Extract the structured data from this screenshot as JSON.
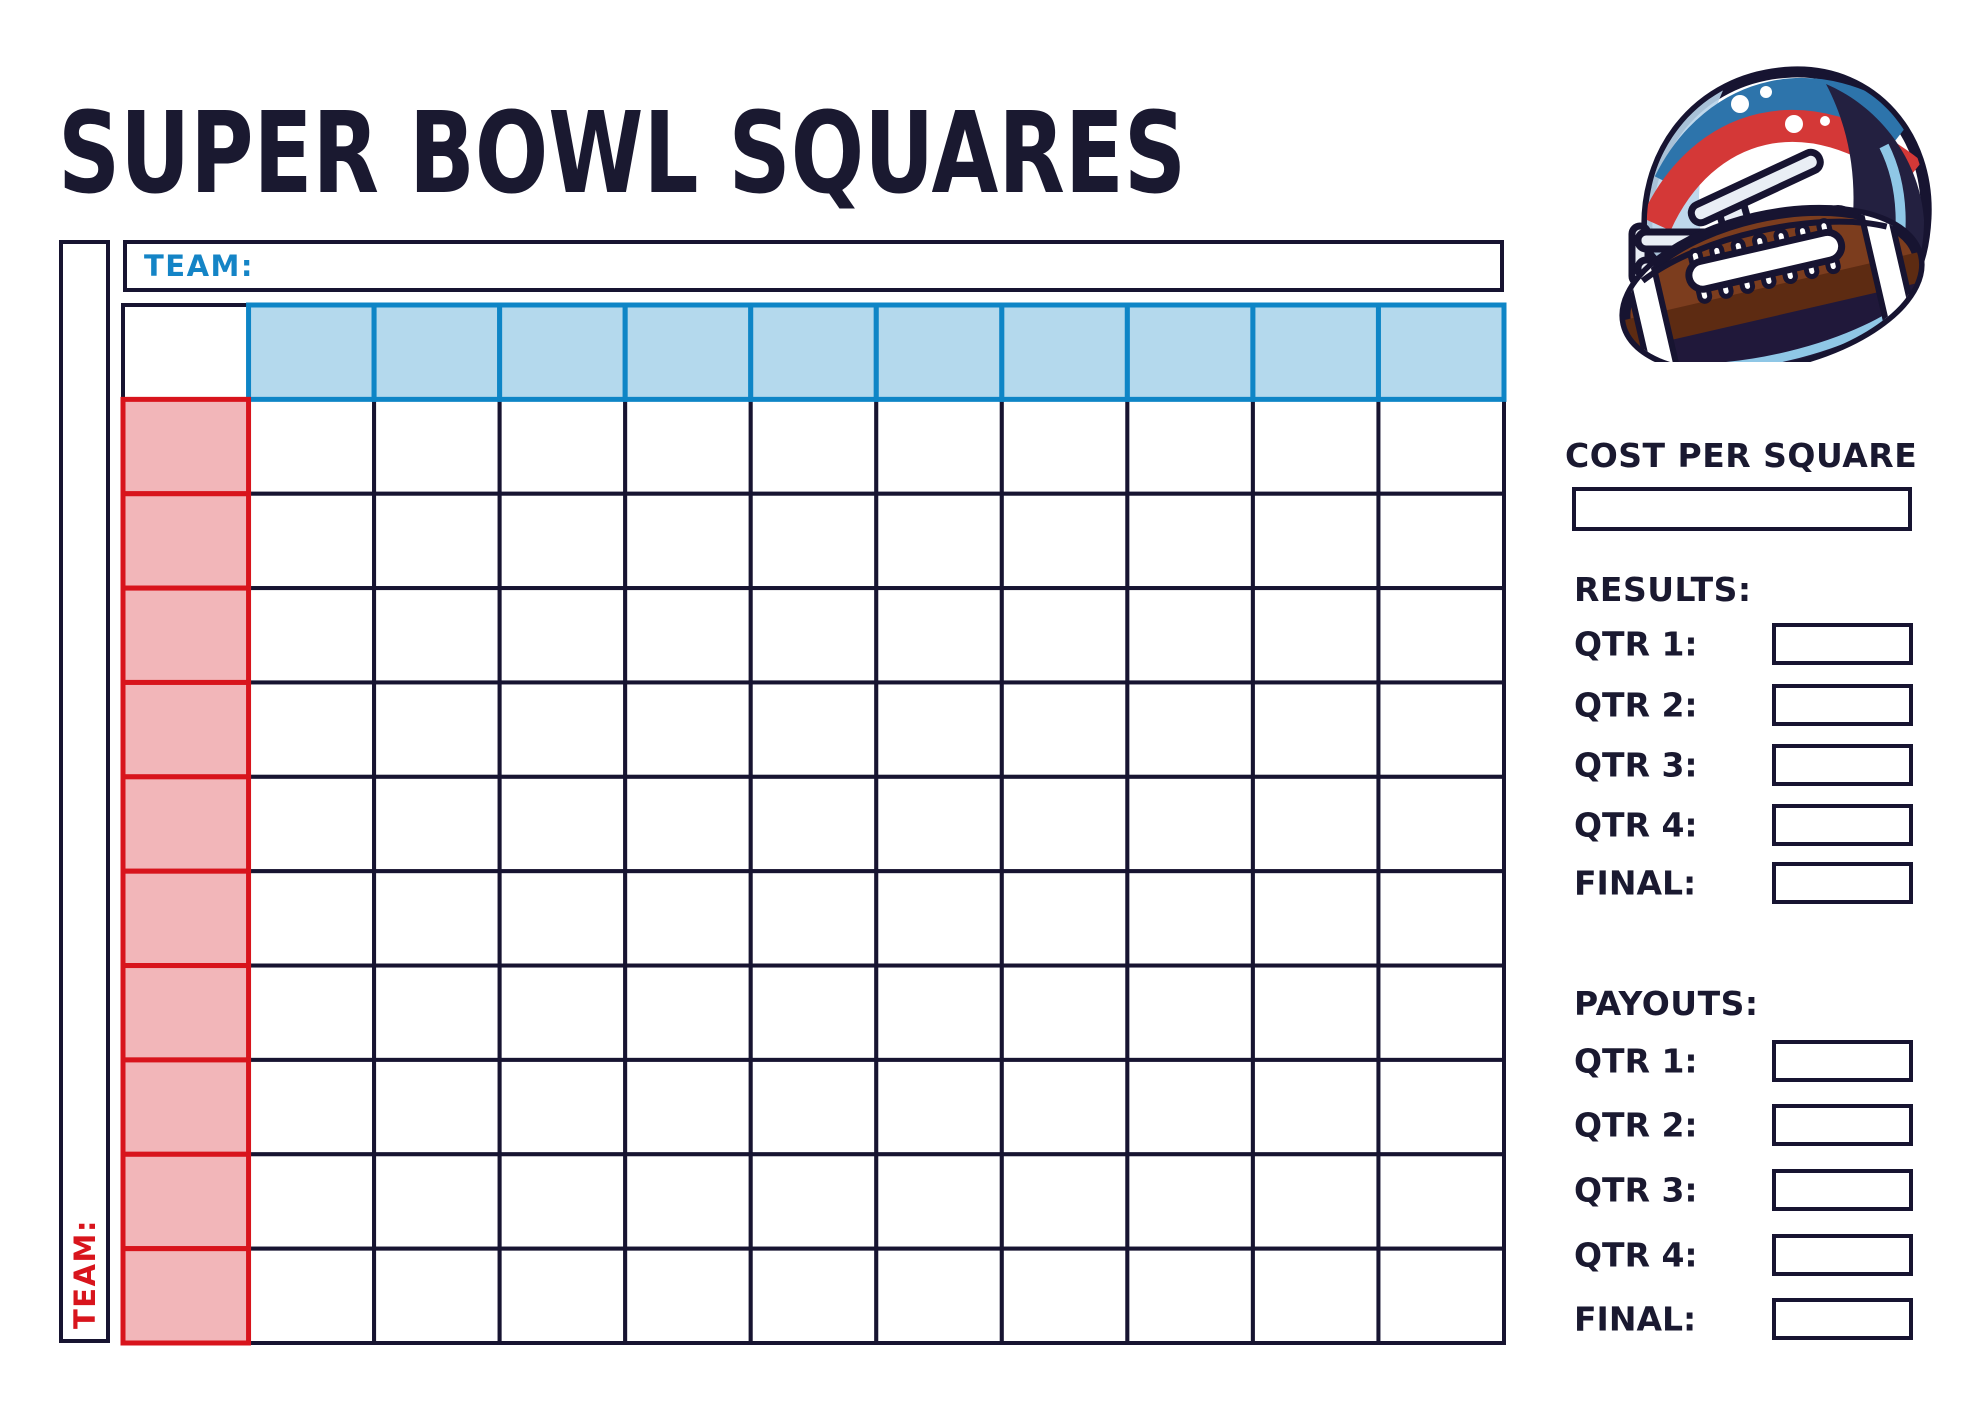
{
  "title": "SUPER BOWL SQUARES",
  "team_row_label": "TEAM:",
  "team_col_label": "TEAM:",
  "grid": {
    "rows": 11,
    "cols": 11,
    "cell_fill": "#ffffff",
    "line_color": "#171431",
    "top_header_fill": "#b4d9ed",
    "top_header_stroke": "#0e85c6",
    "side_header_fill": "#f2b6b9",
    "side_header_stroke": "#d8141c"
  },
  "sidebar": {
    "cost_heading": "COST PER SQUARE",
    "cost_value": "",
    "results_heading": "RESULTS:",
    "results_rows": [
      {
        "label": "QTR 1:",
        "value": ""
      },
      {
        "label": "QTR 2:",
        "value": ""
      },
      {
        "label": "QTR 3:",
        "value": ""
      },
      {
        "label": "QTR 4:",
        "value": ""
      },
      {
        "label": "FINAL:",
        "value": ""
      }
    ],
    "payouts_heading": "PAYOUTS:",
    "payouts_rows": [
      {
        "label": "QTR 1:",
        "value": ""
      },
      {
        "label": "QTR 2:",
        "value": ""
      },
      {
        "label": "QTR 3:",
        "value": ""
      },
      {
        "label": "QTR 4:",
        "value": ""
      },
      {
        "label": "FINAL:",
        "value": ""
      }
    ]
  },
  "illustration": {
    "icon": "football-helmet"
  },
  "colors": {
    "navy": "#171431",
    "title_navy": "#1a1930",
    "team_blue": "#1484c6",
    "team_red": "#d8141c",
    "header_blue_fill": "#b4d9ed",
    "header_pink_fill": "#f2b6b9"
  }
}
